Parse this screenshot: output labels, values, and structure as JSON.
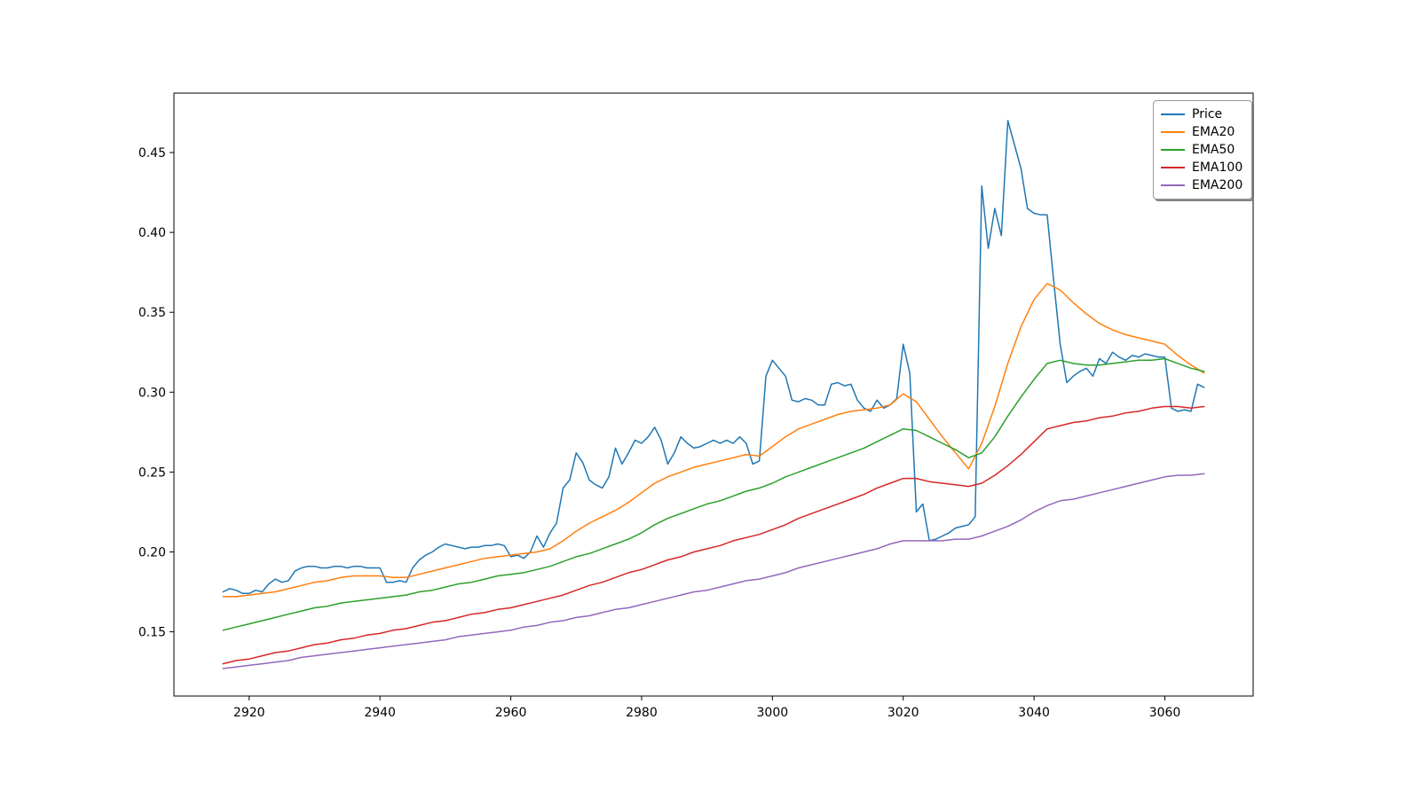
{
  "figure": {
    "background": "#ffffff",
    "plot_border_color": "#000000"
  },
  "chart_data": {
    "type": "line",
    "title": "",
    "xlabel": "",
    "ylabel": "",
    "xlim": [
      2908.5,
      3073.5
    ],
    "ylim": [
      0.1098,
      0.4872
    ],
    "grid": false,
    "legend": {
      "location": "upper right",
      "entries": [
        "Price",
        "EMA20",
        "EMA50",
        "EMA100",
        "EMA200"
      ]
    },
    "x_ticks": [
      {
        "value": 2920,
        "label": "2920"
      },
      {
        "value": 2940,
        "label": "2940"
      },
      {
        "value": 2960,
        "label": "2960"
      },
      {
        "value": 2980,
        "label": "2980"
      },
      {
        "value": 3000,
        "label": "3000"
      },
      {
        "value": 3020,
        "label": "3020"
      },
      {
        "value": 3040,
        "label": "3040"
      },
      {
        "value": 3060,
        "label": "3060"
      }
    ],
    "y_ticks": [
      {
        "value": 0.15,
        "label": "0.15"
      },
      {
        "value": 0.2,
        "label": "0.20"
      },
      {
        "value": 0.25,
        "label": "0.25"
      },
      {
        "value": 0.3,
        "label": "0.30"
      },
      {
        "value": 0.35,
        "label": "0.35"
      },
      {
        "value": 0.4,
        "label": "0.40"
      },
      {
        "value": 0.45,
        "label": "0.45"
      }
    ],
    "series": [
      {
        "name": "Price",
        "color": "#1f77b4",
        "line_width": 1.5,
        "x_start": 2916,
        "x_step": 1,
        "values": [
          0.175,
          0.177,
          0.176,
          0.174,
          0.174,
          0.176,
          0.175,
          0.18,
          0.183,
          0.181,
          0.182,
          0.188,
          0.19,
          0.191,
          0.191,
          0.19,
          0.19,
          0.191,
          0.191,
          0.19,
          0.191,
          0.191,
          0.19,
          0.19,
          0.19,
          0.181,
          0.181,
          0.182,
          0.181,
          0.19,
          0.195,
          0.198,
          0.2,
          0.203,
          0.205,
          0.204,
          0.203,
          0.202,
          0.203,
          0.203,
          0.204,
          0.204,
          0.205,
          0.204,
          0.197,
          0.198,
          0.196,
          0.2,
          0.21,
          0.203,
          0.212,
          0.218,
          0.24,
          0.245,
          0.262,
          0.256,
          0.245,
          0.242,
          0.24,
          0.247,
          0.265,
          0.255,
          0.262,
          0.27,
          0.268,
          0.272,
          0.278,
          0.27,
          0.255,
          0.262,
          0.272,
          0.268,
          0.265,
          0.266,
          0.268,
          0.27,
          0.268,
          0.27,
          0.268,
          0.272,
          0.268,
          0.255,
          0.257,
          0.31,
          0.32,
          0.315,
          0.31,
          0.295,
          0.294,
          0.296,
          0.295,
          0.292,
          0.292,
          0.305,
          0.306,
          0.304,
          0.305,
          0.295,
          0.29,
          0.288,
          0.295,
          0.29,
          0.292,
          0.296,
          0.33,
          0.312,
          0.225,
          0.23,
          0.207,
          0.208,
          0.21,
          0.212,
          0.215,
          0.216,
          0.217,
          0.222,
          0.429,
          0.39,
          0.415,
          0.398,
          0.47,
          0.455,
          0.44,
          0.415,
          0.412,
          0.411,
          0.411,
          0.37,
          0.33,
          0.306,
          0.31,
          0.313,
          0.315,
          0.31,
          0.321,
          0.318,
          0.325,
          0.322,
          0.32,
          0.323,
          0.322,
          0.324,
          0.323,
          0.322,
          0.322,
          0.29,
          0.288,
          0.289,
          0.288,
          0.305,
          0.303
        ]
      },
      {
        "name": "EMA20",
        "color": "#ff7f0e",
        "line_width": 1.5,
        "x_start": 2916,
        "x_step": 2,
        "values": [
          0.172,
          0.172,
          0.173,
          0.174,
          0.175,
          0.177,
          0.179,
          0.181,
          0.182,
          0.184,
          0.185,
          0.185,
          0.185,
          0.184,
          0.184,
          0.186,
          0.188,
          0.19,
          0.192,
          0.194,
          0.196,
          0.197,
          0.198,
          0.199,
          0.2,
          0.202,
          0.207,
          0.213,
          0.218,
          0.222,
          0.226,
          0.231,
          0.237,
          0.243,
          0.247,
          0.25,
          0.253,
          0.255,
          0.257,
          0.259,
          0.261,
          0.26,
          0.266,
          0.272,
          0.277,
          0.28,
          0.283,
          0.286,
          0.288,
          0.289,
          0.29,
          0.292,
          0.299,
          0.294,
          0.283,
          0.272,
          0.262,
          0.252,
          0.268,
          0.291,
          0.318,
          0.341,
          0.358,
          0.368,
          0.364,
          0.356,
          0.349,
          0.343,
          0.339,
          0.336,
          0.334,
          0.332,
          0.33,
          0.323,
          0.317,
          0.312
        ]
      },
      {
        "name": "EMA50",
        "color": "#2ca02c",
        "line_width": 1.5,
        "x_start": 2916,
        "x_step": 2,
        "values": [
          0.151,
          0.153,
          0.155,
          0.157,
          0.159,
          0.161,
          0.163,
          0.165,
          0.166,
          0.168,
          0.169,
          0.17,
          0.171,
          0.172,
          0.173,
          0.175,
          0.176,
          0.178,
          0.18,
          0.181,
          0.183,
          0.185,
          0.186,
          0.187,
          0.189,
          0.191,
          0.194,
          0.197,
          0.199,
          0.202,
          0.205,
          0.208,
          0.212,
          0.217,
          0.221,
          0.224,
          0.227,
          0.23,
          0.232,
          0.235,
          0.238,
          0.24,
          0.243,
          0.247,
          0.25,
          0.253,
          0.256,
          0.259,
          0.262,
          0.265,
          0.269,
          0.273,
          0.277,
          0.276,
          0.272,
          0.268,
          0.264,
          0.259,
          0.262,
          0.272,
          0.285,
          0.297,
          0.308,
          0.318,
          0.32,
          0.318,
          0.317,
          0.317,
          0.318,
          0.319,
          0.32,
          0.32,
          0.321,
          0.318,
          0.315,
          0.313
        ]
      },
      {
        "name": "EMA100",
        "color": "#d62728",
        "line_width": 1.5,
        "x_start": 2916,
        "x_step": 2,
        "values": [
          0.13,
          0.132,
          0.133,
          0.135,
          0.137,
          0.138,
          0.14,
          0.142,
          0.143,
          0.145,
          0.146,
          0.148,
          0.149,
          0.151,
          0.152,
          0.154,
          0.156,
          0.157,
          0.159,
          0.161,
          0.162,
          0.164,
          0.165,
          0.167,
          0.169,
          0.171,
          0.173,
          0.176,
          0.179,
          0.181,
          0.184,
          0.187,
          0.189,
          0.192,
          0.195,
          0.197,
          0.2,
          0.202,
          0.204,
          0.207,
          0.209,
          0.211,
          0.214,
          0.217,
          0.221,
          0.224,
          0.227,
          0.23,
          0.233,
          0.236,
          0.24,
          0.243,
          0.246,
          0.246,
          0.244,
          0.243,
          0.242,
          0.241,
          0.243,
          0.248,
          0.254,
          0.261,
          0.269,
          0.277,
          0.279,
          0.281,
          0.282,
          0.284,
          0.285,
          0.287,
          0.288,
          0.29,
          0.291,
          0.291,
          0.29,
          0.291
        ]
      },
      {
        "name": "EMA200",
        "color": "#9467bd",
        "line_width": 1.5,
        "x_start": 2916,
        "x_step": 2,
        "values": [
          0.127,
          0.128,
          0.129,
          0.13,
          0.131,
          0.132,
          0.134,
          0.135,
          0.136,
          0.137,
          0.138,
          0.139,
          0.14,
          0.141,
          0.142,
          0.143,
          0.144,
          0.145,
          0.147,
          0.148,
          0.149,
          0.15,
          0.151,
          0.153,
          0.154,
          0.156,
          0.157,
          0.159,
          0.16,
          0.162,
          0.164,
          0.165,
          0.167,
          0.169,
          0.171,
          0.173,
          0.175,
          0.176,
          0.178,
          0.18,
          0.182,
          0.183,
          0.185,
          0.187,
          0.19,
          0.192,
          0.194,
          0.196,
          0.198,
          0.2,
          0.202,
          0.205,
          0.207,
          0.207,
          0.207,
          0.207,
          0.208,
          0.208,
          0.21,
          0.213,
          0.216,
          0.22,
          0.225,
          0.229,
          0.232,
          0.233,
          0.235,
          0.237,
          0.239,
          0.241,
          0.243,
          0.245,
          0.247,
          0.248,
          0.248,
          0.249
        ]
      }
    ]
  }
}
